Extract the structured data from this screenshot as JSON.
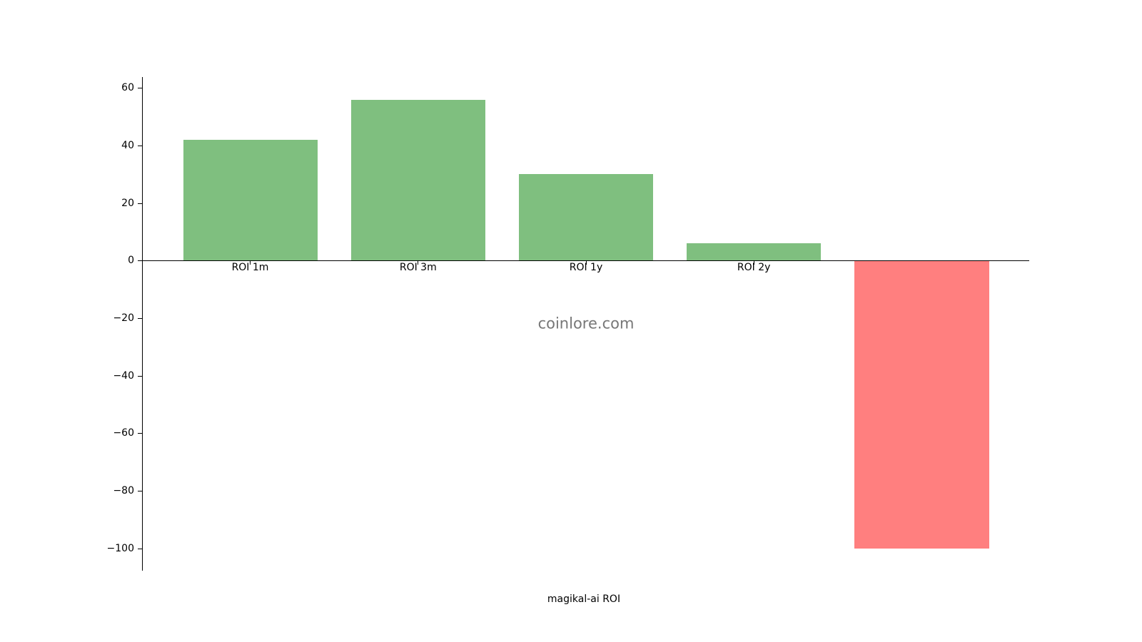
{
  "chart_data": {
    "type": "bar",
    "title": "magikal-ai ROI",
    "watermark": "coinlore.com",
    "xlabel": "magikal-ai ROI",
    "ylabel": "",
    "categories": [
      "ROI 1m",
      "ROI 3m",
      "ROI 1y",
      "ROI 2y",
      ""
    ],
    "values": [
      42,
      56,
      30,
      6,
      -100
    ],
    "bar_colors": [
      "#7fbf7f",
      "#7fbf7f",
      "#7fbf7f",
      "#7fbf7f",
      "#ff7f7f"
    ],
    "positive_color": "#7fbf7f",
    "negative_color": "#ff7f7f",
    "yticks": [
      {
        "value": 60,
        "label": "60"
      },
      {
        "value": 40,
        "label": "40"
      },
      {
        "value": 20,
        "label": "20"
      },
      {
        "value": 0,
        "label": "0"
      },
      {
        "value": -20,
        "label": "−20"
      },
      {
        "value": -40,
        "label": "−40"
      },
      {
        "value": -60,
        "label": "−60"
      },
      {
        "value": -80,
        "label": "−80"
      },
      {
        "value": -100,
        "label": "−100"
      }
    ],
    "ylim": [
      -107.8,
      63.8
    ],
    "xlim": [
      -0.64,
      4.64
    ],
    "bar_width": 0.8,
    "grid": false,
    "legend": null,
    "axis_color": "#000000",
    "watermark_color": "#777777"
  }
}
